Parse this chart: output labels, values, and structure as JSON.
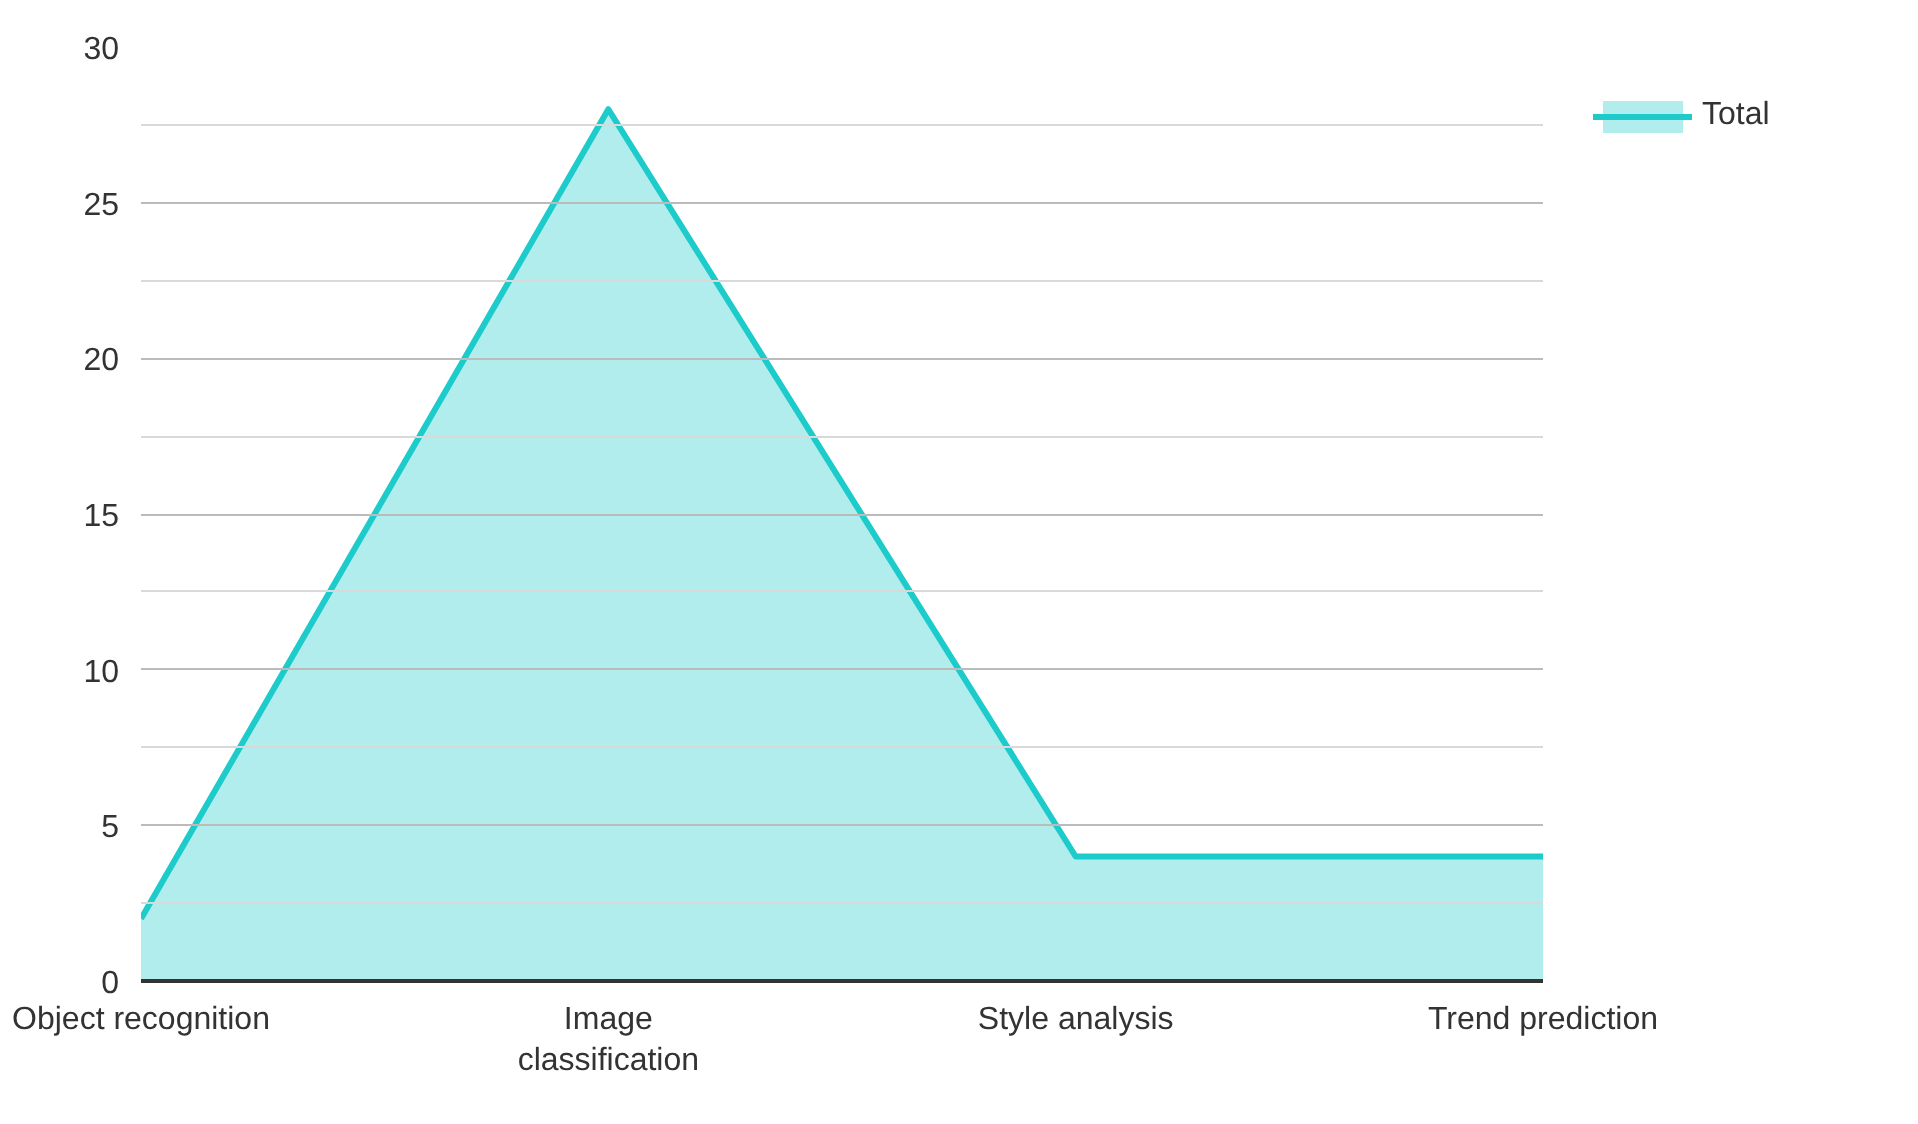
{
  "chart_data": {
    "type": "area",
    "categories": [
      "Object recognition",
      "Image classification",
      "Style analysis",
      "Trend prediction"
    ],
    "series": [
      {
        "name": "Total",
        "color": "#1ecbcb",
        "values": [
          2,
          28,
          4,
          4
        ]
      }
    ],
    "ylim": [
      0,
      30
    ],
    "yticks": [
      0,
      {
        "value": 2.5,
        "label": null
      },
      5,
      {
        "value": 7.5,
        "label": null
      },
      10,
      {
        "value": 12.5,
        "label": null
      },
      15,
      {
        "value": 17.5,
        "label": null
      },
      20,
      {
        "value": 22.5,
        "label": null
      },
      25,
      {
        "value": 27.5,
        "label": null
      },
      30
    ],
    "grid": "y",
    "legend": "top right"
  }
}
